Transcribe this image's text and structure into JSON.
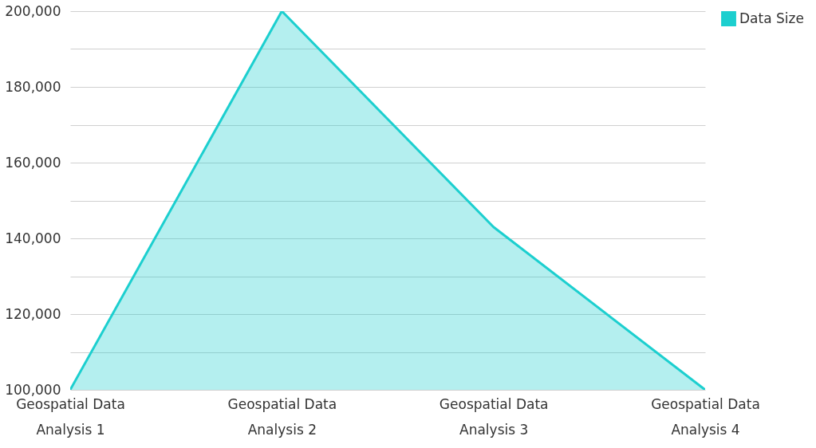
{
  "chart_data": {
    "type": "area",
    "categories": [
      "Geospatial Data Analysis 1",
      "Geospatial Data Analysis 2",
      "Geospatial Data Analysis 3",
      "Geospatial Data Analysis 4"
    ],
    "series": [
      {
        "name": "Data Size",
        "color": "#1ccfcf",
        "values": [
          100000,
          200000,
          143000,
          100000
        ]
      }
    ],
    "ylim": [
      100000,
      200000
    ],
    "yticks": [
      {
        "value": 100000,
        "label": "100,000"
      },
      {
        "value": 110000,
        "label": null
      },
      {
        "value": 120000,
        "label": "120,000"
      },
      {
        "value": 130000,
        "label": null
      },
      {
        "value": 140000,
        "label": "140,000"
      },
      {
        "value": 150000,
        "label": null
      },
      {
        "value": 160000,
        "label": "160,000"
      },
      {
        "value": 170000,
        "label": null
      },
      {
        "value": 180000,
        "label": "180,000"
      },
      {
        "value": 190000,
        "label": null
      },
      {
        "value": 200000,
        "label": "200,000"
      }
    ],
    "grid": "y",
    "legend": "top right"
  }
}
